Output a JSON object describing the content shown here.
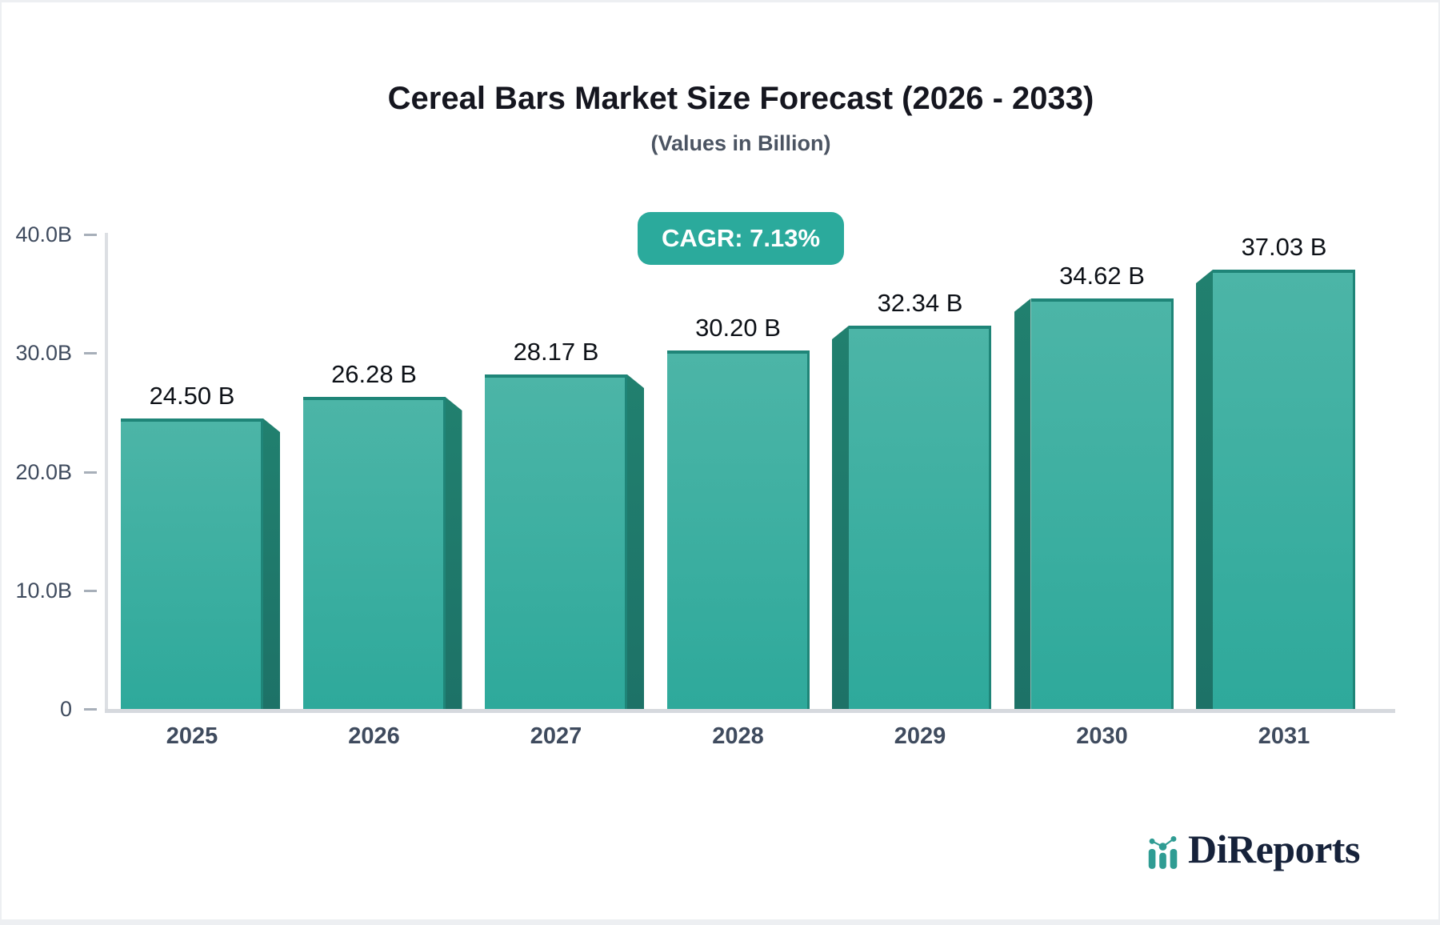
{
  "chart_data": {
    "type": "bar",
    "title": "Cereal Bars Market Size Forecast (2026 - 2033)",
    "subtitle": "(Values in Billion)",
    "badge_label": "CAGR: 7.13%",
    "categories": [
      "2025",
      "2026",
      "2027",
      "2028",
      "2029",
      "2030",
      "2031"
    ],
    "values": [
      24.5,
      26.28,
      28.17,
      30.2,
      32.34,
      34.62,
      37.03
    ],
    "bar_labels": [
      "24.50 B",
      "26.28 B",
      "28.17 B",
      "30.20 B",
      "32.34 B",
      "34.62 B",
      "37.03 B"
    ],
    "ylim": [
      0,
      40
    ],
    "yticks": [
      {
        "value": 40,
        "label": "40.0B"
      },
      {
        "value": 30,
        "label": "30.0B"
      },
      {
        "value": 20,
        "label": "20.0B"
      },
      {
        "value": 10,
        "label": "10.0B"
      },
      {
        "value": 0,
        "label": "0"
      }
    ],
    "xlabel": "",
    "ylabel": "",
    "grid": false,
    "legend": false,
    "bar_style": "3d-extruded",
    "colors": {
      "bar_face_top": "#4cb5a7",
      "bar_face_bottom": "#2ea99b",
      "bar_edge": "#1f8578",
      "bar_side": "#20786d",
      "badge_bg": "#2baa9c",
      "badge_text": "#ffffff",
      "axis_text": "#3f4b5e",
      "value_text": "#0d1117",
      "axis_line": "#d9dce1"
    }
  },
  "footer": {
    "logo_text": "DiReports",
    "logo_icon": "mini-bar-chart-icon"
  }
}
